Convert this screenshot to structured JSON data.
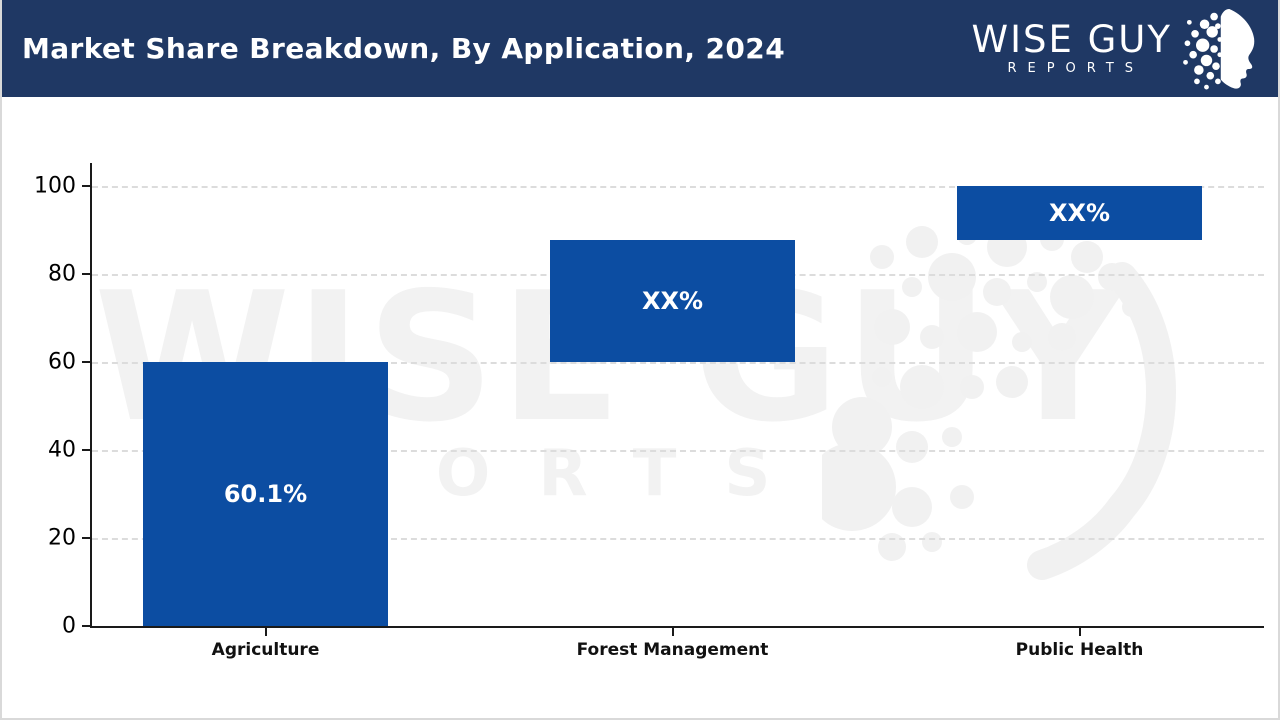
{
  "page": {
    "background": "#ffffff",
    "border_color": "#d9d9d9"
  },
  "header": {
    "background": "#1f3864",
    "title": "Market Share Breakdown, By Application, 2024",
    "title_color": "#ffffff",
    "logo": {
      "line1": "WISE GUY",
      "line2": "REPORTS"
    }
  },
  "watermark": {
    "line1": "WISE GUY",
    "line2": "REPORTS"
  },
  "chart_data": {
    "type": "bar",
    "variant": "stacked-waterfall",
    "title": "Market Share Breakdown, By Application, 2024",
    "categories": [
      "Agriculture",
      "Forest Management",
      "Public Health"
    ],
    "segments": [
      {
        "category": "Agriculture",
        "start": 0,
        "end": 60.1,
        "label": "60.1%"
      },
      {
        "category": "Forest Management",
        "start": 60.1,
        "end": 87.8,
        "label": "XX%"
      },
      {
        "category": "Public Health",
        "start": 87.8,
        "end": 100,
        "label": "XX%"
      }
    ],
    "yticks": [
      0,
      20,
      40,
      60,
      80,
      100
    ],
    "ylim": [
      0,
      105
    ],
    "xlabel": "",
    "ylabel": "",
    "grid": "horizontal-dashed",
    "legend_position": "none",
    "bar_color": "#0c4da2",
    "bar_label_color": "#ffffff",
    "axis_color": "#1a1a1a",
    "gridline_color": "#dcdcdc"
  }
}
